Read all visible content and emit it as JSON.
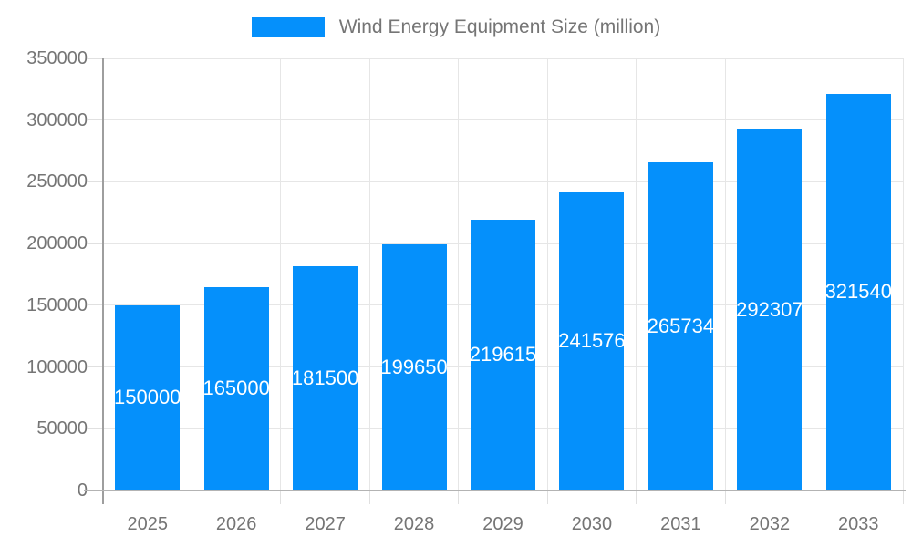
{
  "chart_data": {
    "type": "bar",
    "title": "Wind Energy Equipment Size (million)",
    "categories": [
      "2025",
      "2026",
      "2027",
      "2028",
      "2029",
      "2030",
      "2031",
      "2032",
      "2033"
    ],
    "values": [
      150000,
      165000,
      181500,
      199650,
      219615,
      241576,
      265734,
      292307,
      321540
    ],
    "value_labels": [
      "150000",
      "165000",
      "181500",
      "199650",
      "219615",
      "241576",
      "265734",
      "292307",
      "321540"
    ],
    "xlabel": "",
    "ylabel": "",
    "ylim": [
      0,
      350000
    ],
    "yticks": [
      0,
      50000,
      100000,
      150000,
      200000,
      250000,
      300000,
      350000
    ],
    "ytick_labels": [
      "0",
      "50000",
      "100000",
      "150000",
      "200000",
      "250000",
      "300000",
      "350000"
    ],
    "grid": "on",
    "legend_position": "top-center",
    "colors": {
      "bar": "#0590FB",
      "axis_text": "#757575",
      "value_text": "#ffffff",
      "gridline": "#e6e6e6",
      "y_axis_line": "#9e9e9e",
      "x_axis_line": "#b3b3b3",
      "tick": "#e0e0e0",
      "background": "#ffffff"
    }
  }
}
